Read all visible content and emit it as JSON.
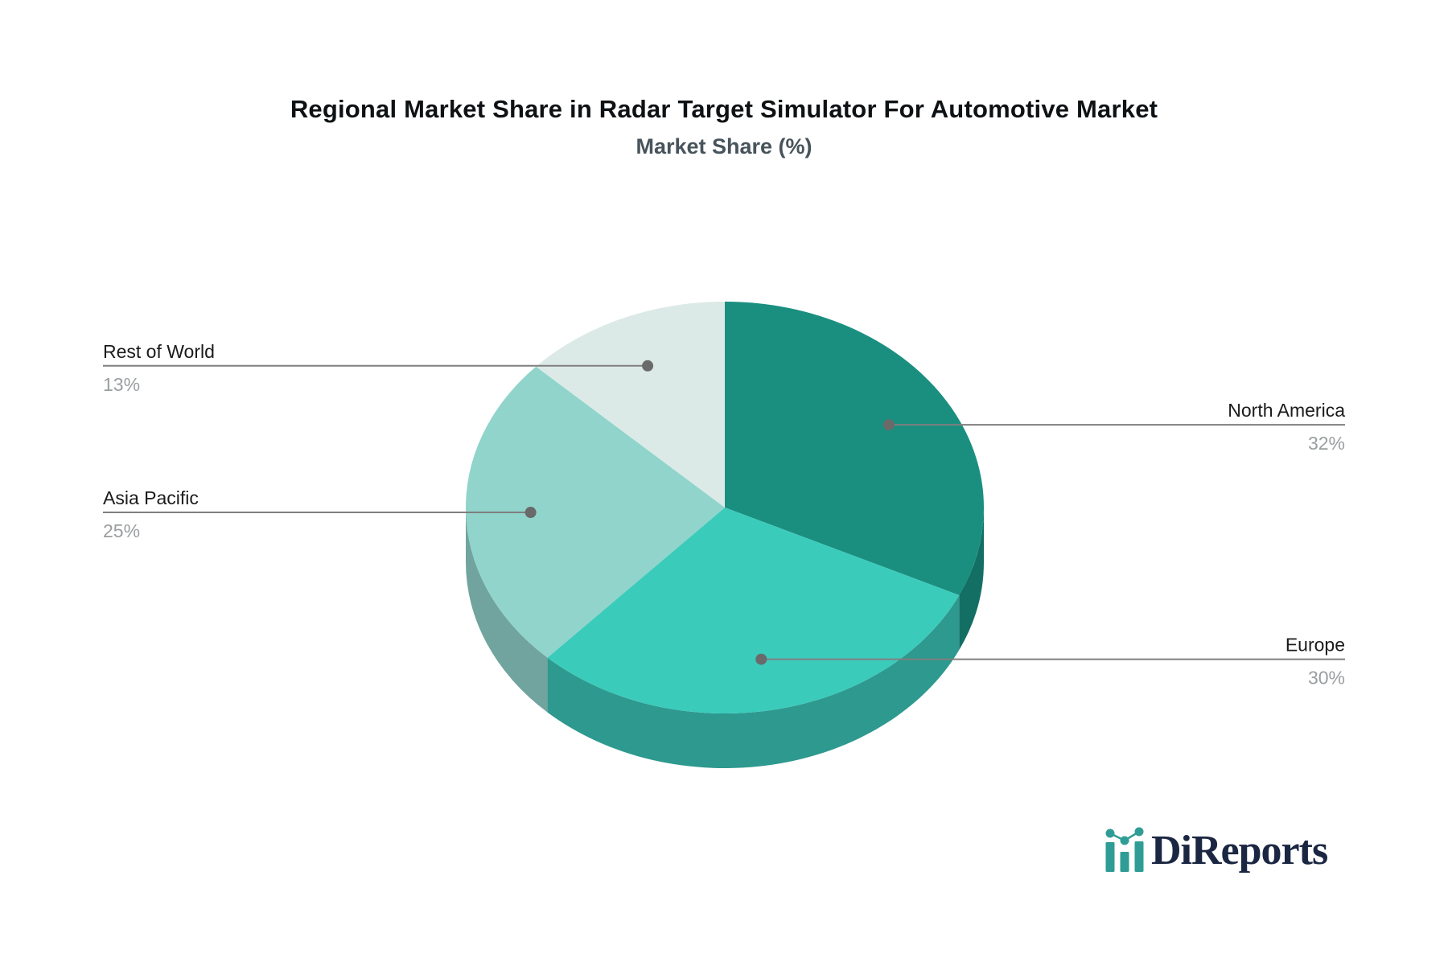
{
  "header": {
    "title": "Regional Market Share in Radar Target Simulator For Automotive Market",
    "subtitle": "Market Share (%)"
  },
  "chart_data": {
    "type": "pie",
    "style": "3d",
    "title": "Regional Market Share in Radar Target Simulator For Automotive Market",
    "subtitle": "Market Share (%)",
    "unit": "%",
    "start_angle": "12-oclock",
    "direction": "clockwise",
    "legend_position": "outside-callouts",
    "slices": [
      {
        "label": "North America",
        "value": 32,
        "display": "32%",
        "color": "#1A8F80",
        "side_color": "#136F63"
      },
      {
        "label": "Europe",
        "value": 30,
        "display": "30%",
        "color": "#3BCBBB",
        "side_color": "#2E998E"
      },
      {
        "label": "Asia Pacific",
        "value": 25,
        "display": "25%",
        "color": "#90D4CB",
        "side_color": "#71A49E"
      },
      {
        "label": "Rest of World",
        "value": 13,
        "display": "13%",
        "color": "#DCEAE7",
        "side_color": "#C2D8D4"
      }
    ],
    "label_text_color": "#1b1b1b",
    "pct_text_color": "#9a9ea0",
    "leader_line_color": "#7f7f7f",
    "leader_dot_color": "#6a6a6a"
  },
  "branding": {
    "logo_text": "DiReports",
    "logo_text_color": "#1b2742",
    "logo_icon_color": "#2F9D95"
  }
}
